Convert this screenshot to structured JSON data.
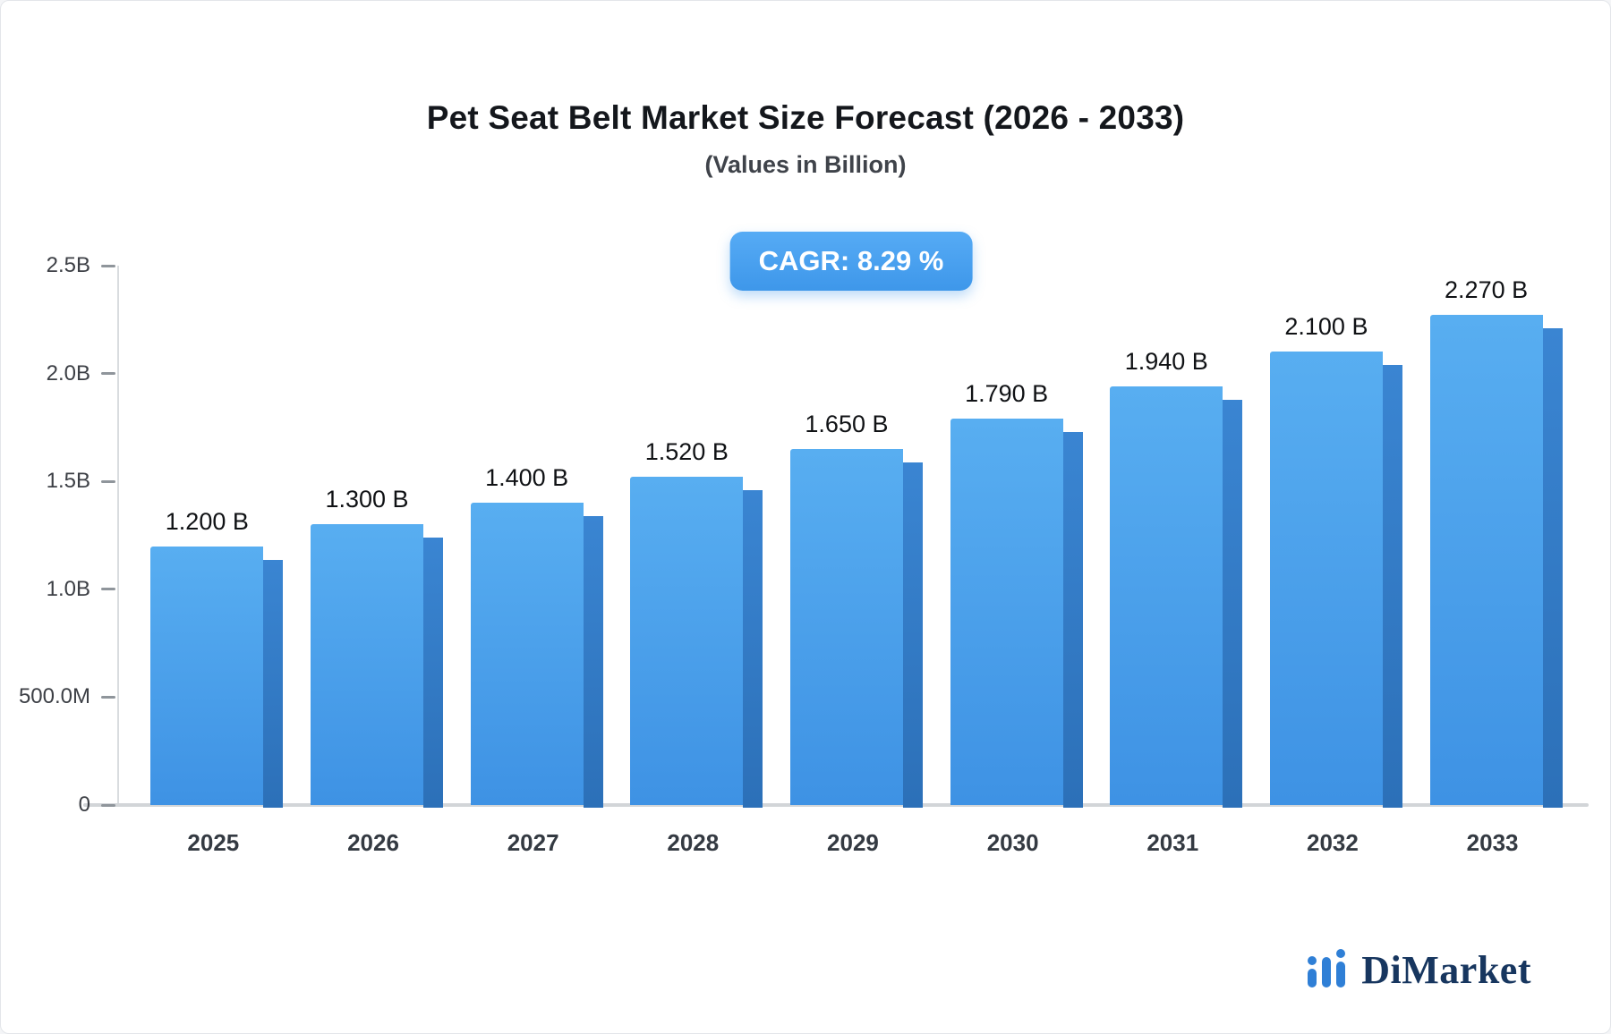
{
  "header": {
    "title": "Pet Seat Belt Market Size Forecast (2026 - 2033)",
    "subtitle": "(Values in Billion)"
  },
  "badge": {
    "label": "CAGR: 8.29 %"
  },
  "logo": {
    "text": "DiMarket",
    "icon": "bar-chart-icon",
    "accent": "#2f7fd6"
  },
  "chart_data": {
    "type": "bar",
    "title": "Pet Seat Belt Market Size Forecast (2026 - 2033)",
    "subtitle": "(Values in Billion)",
    "categories": [
      "2025",
      "2026",
      "2027",
      "2028",
      "2029",
      "2030",
      "2031",
      "2032",
      "2033"
    ],
    "values": [
      1.2,
      1.3,
      1.4,
      1.52,
      1.65,
      1.79,
      1.94,
      2.1,
      2.27
    ],
    "value_labels": [
      "1.200 B",
      "1.300 B",
      "1.400 B",
      "1.520 B",
      "1.650 B",
      "1.790 B",
      "1.940 B",
      "2.100 B",
      "2.270 B"
    ],
    "xlabel": "",
    "ylabel": "",
    "ylim": [
      0,
      2.5
    ],
    "yticks": [
      {
        "value": 0,
        "label": "0"
      },
      {
        "value": 0.5,
        "label": "500.0M"
      },
      {
        "value": 1.0,
        "label": "1.0B"
      },
      {
        "value": 1.5,
        "label": "1.5B"
      },
      {
        "value": 2.0,
        "label": "2.0B"
      },
      {
        "value": 2.5,
        "label": "2.5B"
      }
    ],
    "grid": false,
    "legend": "none",
    "bar_color_top": "#58aef1",
    "bar_color_bottom": "#3e92e4",
    "bar_side_color": "#2c70b8",
    "cagr": "8.29 %"
  }
}
